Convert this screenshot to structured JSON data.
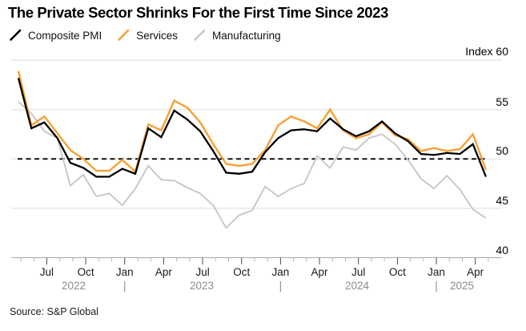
{
  "source_line": "Source: S&P Global",
  "chart_data": {
    "type": "line",
    "title": "The Private Sector Shrinks For the First Time Since 2023",
    "source": "Source: S&P Global",
    "y_axis_top_label": "Index 60",
    "ylim": [
      40,
      60
    ],
    "yticks": [
      55,
      50,
      45,
      40
    ],
    "grid": true,
    "legend_position": "top-left",
    "reference_line": {
      "value": 50,
      "style": "dashed",
      "color": "#000000"
    },
    "x": [
      "Apr 2022",
      "May 2022",
      "Jun 2022",
      "Jul 2022",
      "Aug 2022",
      "Sep 2022",
      "Oct 2022",
      "Nov 2022",
      "Dec 2022",
      "Jan 2023",
      "Feb 2023",
      "Mar 2023",
      "Apr 2023",
      "May 2023",
      "Jun 2023",
      "Jul 2023",
      "Aug 2023",
      "Sep 2023",
      "Oct 2023",
      "Nov 2023",
      "Dec 2023",
      "Jan 2024",
      "Feb 2024",
      "Mar 2024",
      "Apr 2024",
      "May 2024",
      "Jun 2024",
      "Jul 2024",
      "Aug 2024",
      "Sep 2024",
      "Oct 2024",
      "Nov 2024",
      "Dec 2024",
      "Jan 2025",
      "Feb 2025",
      "Mar 2025",
      "Apr 2025"
    ],
    "x_tick_labels": [
      "Jul",
      "Oct",
      "Jan",
      "Apr",
      "Jul",
      "Oct",
      "Jan",
      "Apr",
      "Jul",
      "Oct",
      "Jan",
      "Apr"
    ],
    "year_labels": [
      "2022",
      "2023",
      "2024",
      "2025"
    ],
    "series": [
      {
        "name": "Composite PMI",
        "color": "#000000",
        "values": [
          58.2,
          53.1,
          53.7,
          52.1,
          49.6,
          49.1,
          48.2,
          48.2,
          49.0,
          48.5,
          53.1,
          52.2,
          54.9,
          54.0,
          52.8,
          50.8,
          48.6,
          48.5,
          48.7,
          50.7,
          52.1,
          52.9,
          53.0,
          52.8,
          54.1,
          53.0,
          52.3,
          52.8,
          53.8,
          52.6,
          51.8,
          50.5,
          50.4,
          50.6,
          50.5,
          51.5,
          48.2
        ]
      },
      {
        "name": "Services",
        "color": "#F7A034",
        "values": [
          58.9,
          53.4,
          54.3,
          52.6,
          50.9,
          50.0,
          48.8,
          48.8,
          49.9,
          48.7,
          53.5,
          52.9,
          55.9,
          55.2,
          53.7,
          51.5,
          49.5,
          49.3,
          49.5,
          50.9,
          53.4,
          54.3,
          53.8,
          53.1,
          55.0,
          52.9,
          52.1,
          52.5,
          53.7,
          52.4,
          52.0,
          50.8,
          51.1,
          50.8,
          51.0,
          52.5,
          48.9
        ]
      },
      {
        "name": "Manufacturing",
        "color": "#C7C7C7",
        "values": [
          55.8,
          54.6,
          52.8,
          52.1,
          47.3,
          48.4,
          46.2,
          46.5,
          45.3,
          47.0,
          49.3,
          47.9,
          47.8,
          47.1,
          46.5,
          45.3,
          43.0,
          44.3,
          44.8,
          47.2,
          46.2,
          47.0,
          47.5,
          50.3,
          49.1,
          51.2,
          50.9,
          52.1,
          52.5,
          51.5,
          49.9,
          48.0,
          47.0,
          48.3,
          46.9,
          44.9,
          44.0
        ]
      }
    ]
  }
}
